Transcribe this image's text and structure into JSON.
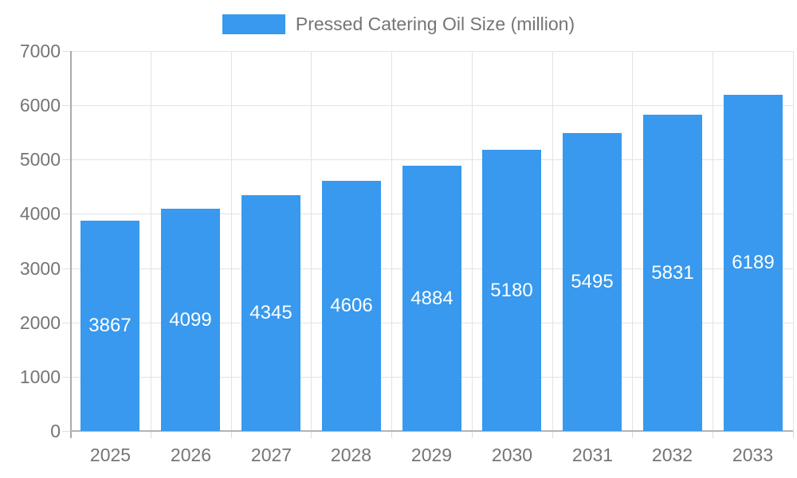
{
  "chart_data": {
    "type": "bar",
    "title": "Pressed Catering Oil Size (million)",
    "series_name": "Pressed Catering Oil Size (million)",
    "categories": [
      "2025",
      "2026",
      "2027",
      "2028",
      "2029",
      "2030",
      "2031",
      "2032",
      "2033"
    ],
    "values": [
      3867,
      4099,
      4345,
      4606,
      4884,
      5180,
      5495,
      5831,
      6189
    ],
    "xlabel": "",
    "ylabel": "",
    "ylim": [
      0,
      7000
    ],
    "y_ticks": [
      0,
      1000,
      2000,
      3000,
      4000,
      5000,
      6000,
      7000
    ],
    "grid": true,
    "legend_position": "top-center",
    "value_labels": "inside-center"
  },
  "colors": {
    "bar": "#3899ee",
    "value_label": "#ffffff",
    "axis_text": "#757575",
    "gridline": "#e3e3e3",
    "axis_line": "#aaaaaa",
    "background": "#ffffff"
  }
}
